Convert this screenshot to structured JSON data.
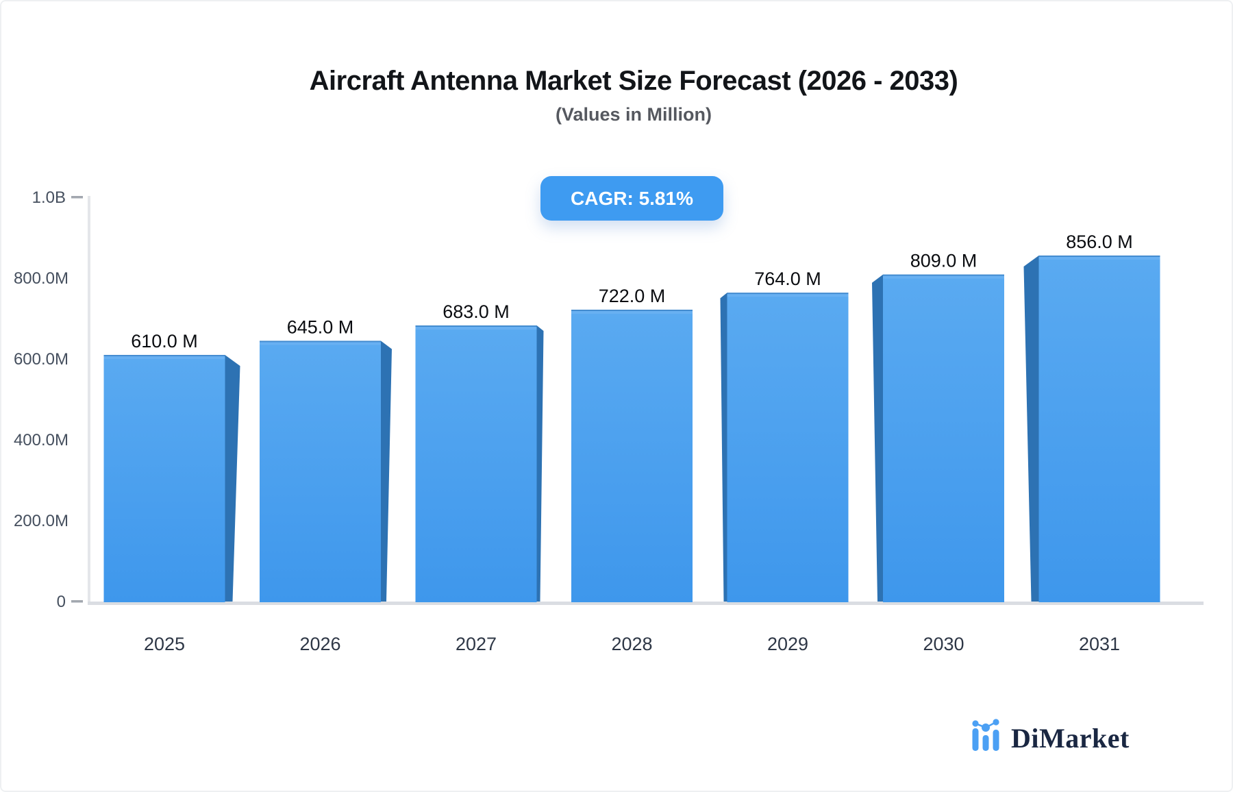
{
  "header": {
    "title": "Aircraft Antenna Market Size Forecast (2026 - 2033)",
    "subtitle": "(Values in Million)",
    "cagr_badge": "CAGR: 5.81%"
  },
  "chart_data": {
    "type": "bar",
    "title": "Aircraft Antenna Market Size Forecast (2026 - 2033)",
    "subtitle": "(Values in Million)",
    "cagr_percent": 5.81,
    "categories": [
      "2025",
      "2026",
      "2027",
      "2028",
      "2029",
      "2030",
      "2031"
    ],
    "values": [
      610,
      645,
      683,
      722,
      764,
      809,
      856
    ],
    "value_labels": [
      "610.0 M",
      "645.0 M",
      "683.0 M",
      "722.0 M",
      "764.0 M",
      "809.0 M",
      "856.0 M"
    ],
    "unit": "Million",
    "ylim": [
      0,
      1000
    ],
    "yticks": [
      {
        "label": "1.0B",
        "value": 1000,
        "tick_dash": true
      },
      {
        "label": "800.0M",
        "value": 800,
        "tick_dash": false
      },
      {
        "label": "600.0M",
        "value": 600,
        "tick_dash": false
      },
      {
        "label": "400.0M",
        "value": 400,
        "tick_dash": false
      },
      {
        "label": "200.0M",
        "value": 200,
        "tick_dash": false
      },
      {
        "label": "0",
        "value": 0,
        "tick_dash": true
      }
    ],
    "grid": false,
    "legend": false,
    "style_3d": true,
    "colors": {
      "bar_face_top": "#5AAAF1",
      "bar_face_bottom": "#3E97EC",
      "bar_side": "#2D72B3",
      "bar_top_line": "#3F86C9",
      "bar_top_strip": "#68B0F2",
      "axis_line": "#DADDE2",
      "y_axis_line": "#E4E6EA",
      "tick_dash": "#A2A7AF",
      "ytick_label": "#454F5E",
      "xtick_label": "#2E3746",
      "value_label": "#0A0C10",
      "badge_bg": "#3E9BF1",
      "badge_text": "#FFFFFF"
    }
  },
  "footer": {
    "brand": "DiMarket",
    "brand_icon": "bar-chart-trend-icon",
    "brand_text_color": "#1A2742",
    "brand_icon_color": "#4BA0F4"
  }
}
